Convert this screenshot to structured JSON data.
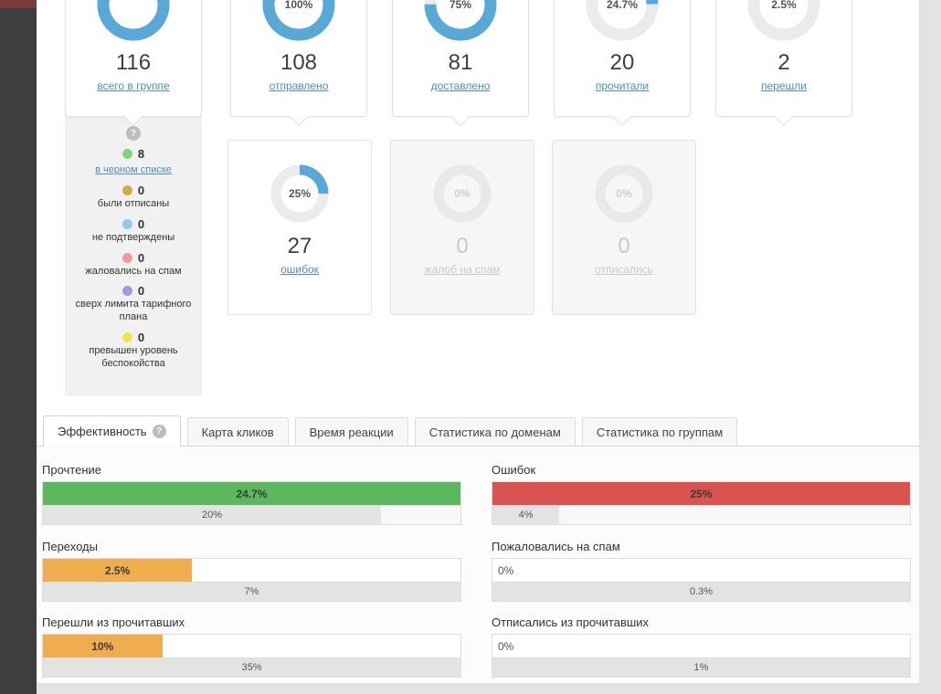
{
  "colors": {
    "accent_blue": "#58a9d8",
    "green": "#5cb85c",
    "orange": "#f0ad4e",
    "red": "#d9534f",
    "link": "#4a90c2"
  },
  "summary_cards": [
    {
      "percent": "",
      "value": "116",
      "label": "всего в группе",
      "pct": 100
    },
    {
      "percent": "100%",
      "value": "108",
      "label": "отправлено",
      "pct": 100
    },
    {
      "percent": "75%",
      "value": "81",
      "label": "доставлено",
      "pct": 75
    },
    {
      "percent": "24.7%",
      "value": "20",
      "label": "прочитали",
      "pct": 24.7
    },
    {
      "percent": "2.5%",
      "value": "2",
      "label": "перешли",
      "pct": 2.5
    }
  ],
  "legend": {
    "help_icon": "?",
    "items": [
      {
        "value": "8",
        "label": "в черном списке",
        "color": "#86d37e",
        "link": true
      },
      {
        "value": "0",
        "label": "были отписаны",
        "color": "#cfae45",
        "link": false
      },
      {
        "value": "0",
        "label": "не подтверждены",
        "color": "#8ec9ef",
        "link": false
      },
      {
        "value": "0",
        "label": "жаловались на спам",
        "color": "#f19999",
        "link": false
      },
      {
        "value": "0",
        "label": "сверх лимита тарифного плана",
        "color": "#98a0e0",
        "link": false
      },
      {
        "value": "0",
        "label": "превышен уровень беспокойства",
        "color": "#f5e34b",
        "link": false
      }
    ]
  },
  "secondary_cards": [
    {
      "percent": "25%",
      "value": "27",
      "label": "ошибок",
      "pct": 25,
      "disabled": false
    },
    {
      "percent": "0%",
      "value": "0",
      "label": "жалоб на спам",
      "pct": 0,
      "disabled": true
    },
    {
      "percent": "0%",
      "value": "0",
      "label": "отписались",
      "pct": 0,
      "disabled": true
    }
  ],
  "tabs": [
    {
      "label": "Эффективность",
      "help": "?",
      "active": true
    },
    {
      "label": "Карта кликов",
      "active": false
    },
    {
      "label": "Время реакции",
      "active": false
    },
    {
      "label": "Статистика по доменам",
      "active": false
    },
    {
      "label": "Статистика по группам",
      "active": false
    }
  ],
  "efficiency": {
    "left": [
      {
        "label": "Прочтение",
        "bar": {
          "text": "24.7%",
          "value": 24.7,
          "color": "#5cb85c"
        },
        "avg": {
          "text": "20%",
          "value": 20
        }
      },
      {
        "label": "Переходы",
        "bar": {
          "text": "2.5%",
          "value": 2.5,
          "color": "#f0ad4e"
        },
        "avg": {
          "text": "7%",
          "value": 7
        }
      },
      {
        "label": "Перешли из прочитавших",
        "bar": {
          "text": "10%",
          "value": 10,
          "color": "#f0ad4e"
        },
        "avg": {
          "text": "35%",
          "value": 35
        }
      }
    ],
    "right": [
      {
        "label": "Ошибок",
        "bar": {
          "text": "25%",
          "value": 25,
          "color": "#d9534f"
        },
        "avg": {
          "text": "4%",
          "value": 4
        }
      },
      {
        "label": "Пожаловались на спам",
        "bar": {
          "text": "0%",
          "value": 0,
          "color": ""
        },
        "avg": {
          "text": "0.3%",
          "value": 0.3
        }
      },
      {
        "label": "Отписались из прочитавших",
        "bar": {
          "text": "0%",
          "value": 0,
          "color": ""
        },
        "avg": {
          "text": "1%",
          "value": 1
        }
      }
    ]
  }
}
